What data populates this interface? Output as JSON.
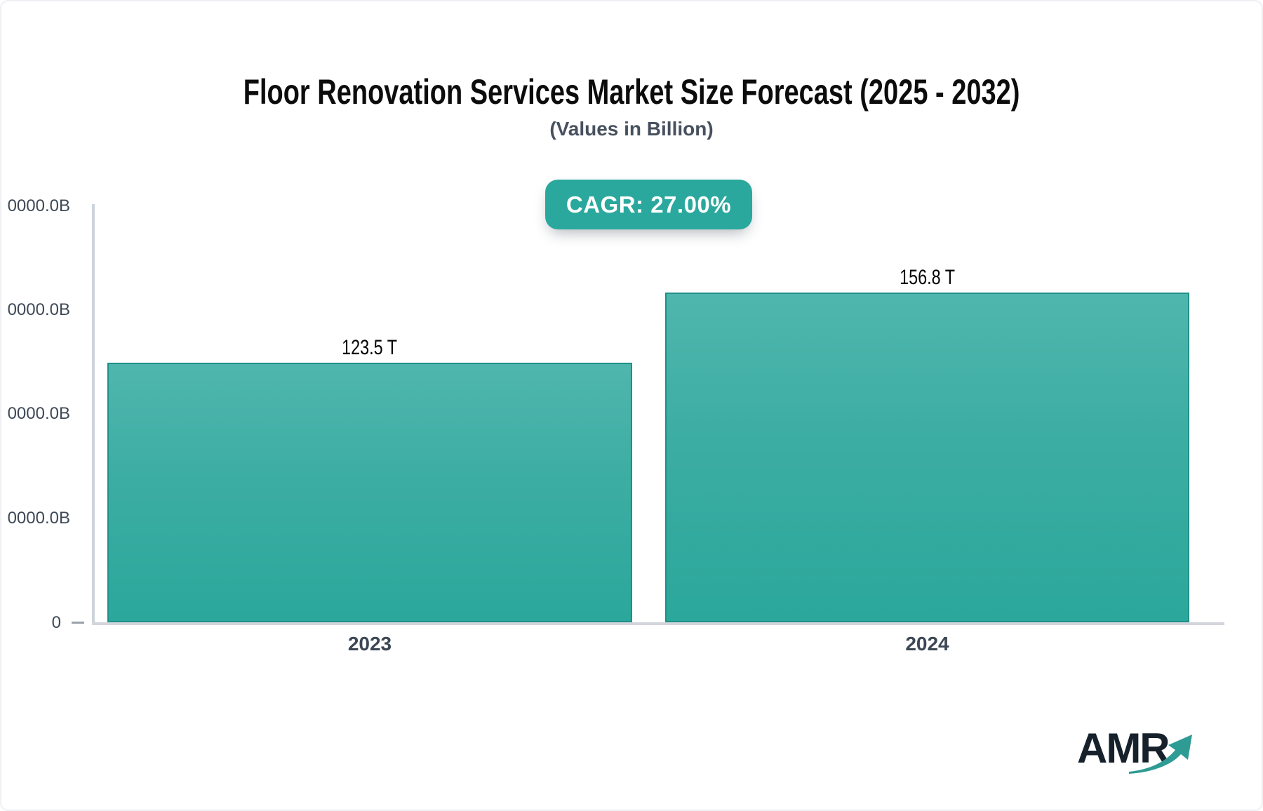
{
  "page": {
    "background": "#ffffff",
    "border_color": "#eef0f3"
  },
  "header": {
    "title": "Floor Renovation Services Market Size Forecast (2025 - 2032)",
    "subtitle": "(Values in Billion)"
  },
  "cagr_badge": {
    "label": "CAGR: 27.00%",
    "background": "#2aa89d",
    "text_color": "#ffffff"
  },
  "chart_data": {
    "type": "bar",
    "title": "Floor Renovation Services Market Size Forecast (2025 - 2032)",
    "subtitle": "(Values in Billion)",
    "categories": [
      "2023",
      "2024"
    ],
    "values": [
      123.5,
      156.8
    ],
    "unit": "T",
    "value_labels": [
      "123.5 T",
      "156.8 T"
    ],
    "cagr_label": "CAGR: 27.00%",
    "y_axis": {
      "visible_tick_labels": [
        "0000.0B",
        "0000.0B",
        "0000.0B",
        "0000.0B",
        "0"
      ],
      "ylim_billions_estimate": [
        0,
        200000
      ],
      "tick_interval_billions_estimate": 50000
    },
    "xlabel": "",
    "ylabel": "",
    "legend": "none",
    "grid": "off",
    "bar_colors": {
      "fill_top": "#4fb6ad",
      "fill_bottom": "#2ba79b",
      "border": "#1f9089"
    },
    "axis_color": "#d2d6dc",
    "tick_label_color": "#3e4958"
  },
  "logo": {
    "text": "AMR",
    "text_color": "#16212b",
    "arrow_color": "#2e9b94"
  }
}
